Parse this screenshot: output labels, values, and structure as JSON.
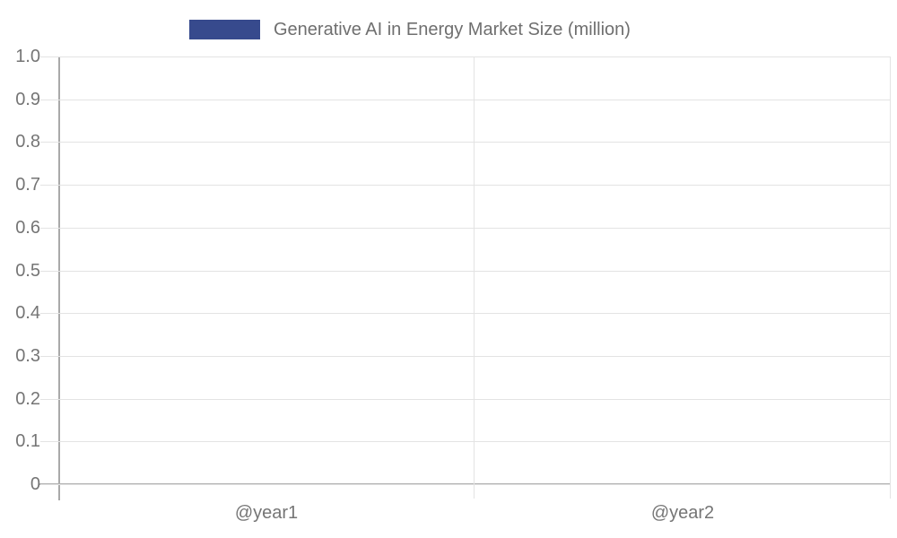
{
  "chart_data": {
    "type": "bar",
    "title": "Generative AI in Energy Market Size (million)",
    "categories": [
      "@year1",
      "@year2"
    ],
    "series": [
      {
        "name": "Generative AI in Energy Market Size (million)",
        "values": [
          0,
          0
        ]
      }
    ],
    "xlabel": "",
    "ylabel": "",
    "ylim": [
      0,
      1
    ],
    "yticks": [
      "1.0",
      "0.9",
      "0.8",
      "0.7",
      "0.6",
      "0.5",
      "0.4",
      "0.3",
      "0.2",
      "0.1",
      "0"
    ],
    "grid": true,
    "legend_position": "top",
    "colors": {
      "series": "#374a8d",
      "grid": "#e3e3e3",
      "axis_line_y": "#a9a9a9",
      "axis_line_x": "#b0b0b0",
      "tick_label": "#757575",
      "title_text": "#6f6f6f",
      "background": "#ffffff"
    }
  },
  "legend": {
    "label": "Generative AI in Energy Market Size (million)"
  }
}
